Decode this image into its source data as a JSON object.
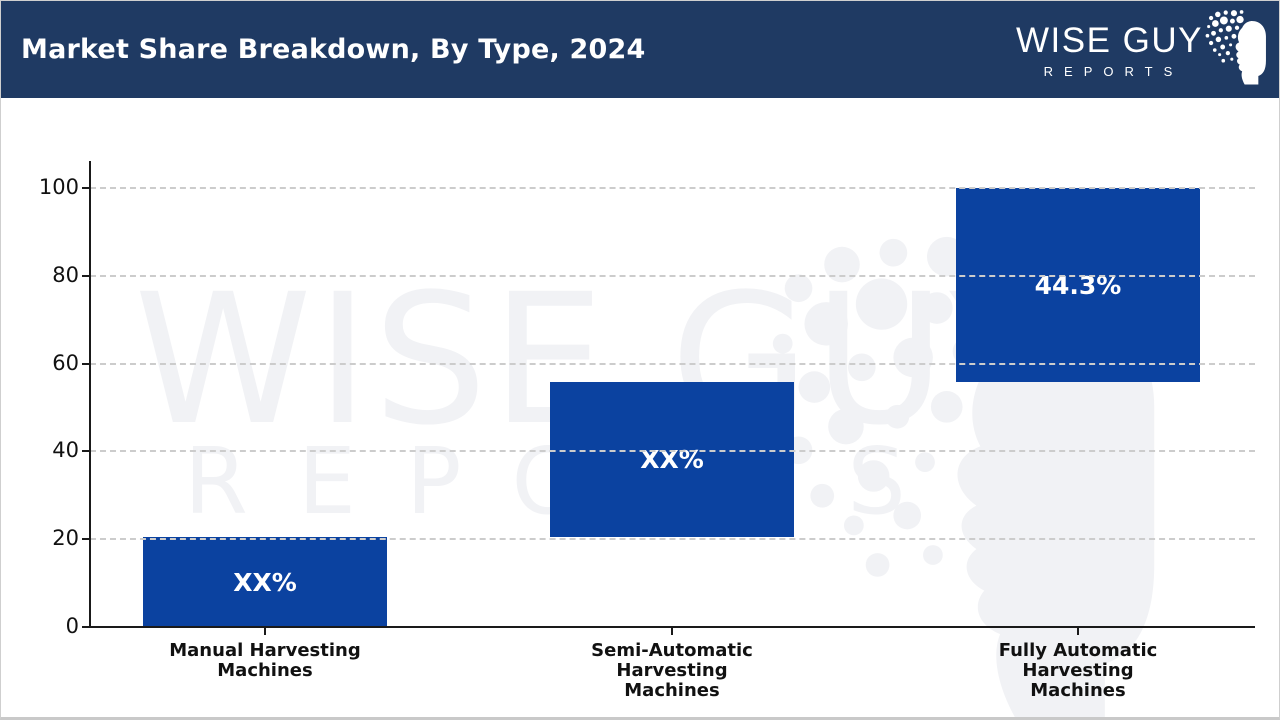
{
  "page": {
    "background": "#ffffff",
    "border_color": "#cfcfcf"
  },
  "header": {
    "title": "Market Share Breakdown, By Type, 2024",
    "bg_color": "#1f3a63",
    "text_color": "#ffffff",
    "logo": {
      "line1": "WISE GUY",
      "line2": "REPORTS"
    }
  },
  "watermark": {
    "line1": "WISE GUY",
    "line2": "REPORTS",
    "color": "#f1f2f5"
  },
  "chart_data": {
    "type": "bar",
    "variant": "waterfall",
    "title": "Market Share Breakdown, By Type, 2024",
    "categories": [
      "Manual Harvesting Machines",
      "Semi-Automatic Harvesting Machines",
      "Fully Automatic Harvesting Machines"
    ],
    "category_lines": [
      [
        "Manual Harvesting",
        "Machines"
      ],
      [
        "Semi-Automatic",
        "Harvesting",
        "Machines"
      ],
      [
        "Fully Automatic",
        "Harvesting",
        "Machines"
      ]
    ],
    "segments": [
      {
        "category": "Manual Harvesting Machines",
        "start": 0,
        "end": 20.4,
        "label": "XX%"
      },
      {
        "category": "Semi-Automatic Harvesting Machines",
        "start": 20.4,
        "end": 55.7,
        "label": "XX%"
      },
      {
        "category": "Fully Automatic Harvesting Machines",
        "start": 55.7,
        "end": 100,
        "label": "44.3%"
      }
    ],
    "yticks": [
      0,
      20,
      40,
      60,
      80,
      100
    ],
    "ylim": [
      0,
      100
    ],
    "xlabel": "",
    "ylabel": "",
    "grid": {
      "axis": "y",
      "style": "dashed",
      "color": "#cccccc",
      "over_bars": true
    },
    "bar_color": "#0b42a0",
    "bar_label_color": "#ffffff",
    "axis_color": "#1a1a1a",
    "legend": null
  }
}
